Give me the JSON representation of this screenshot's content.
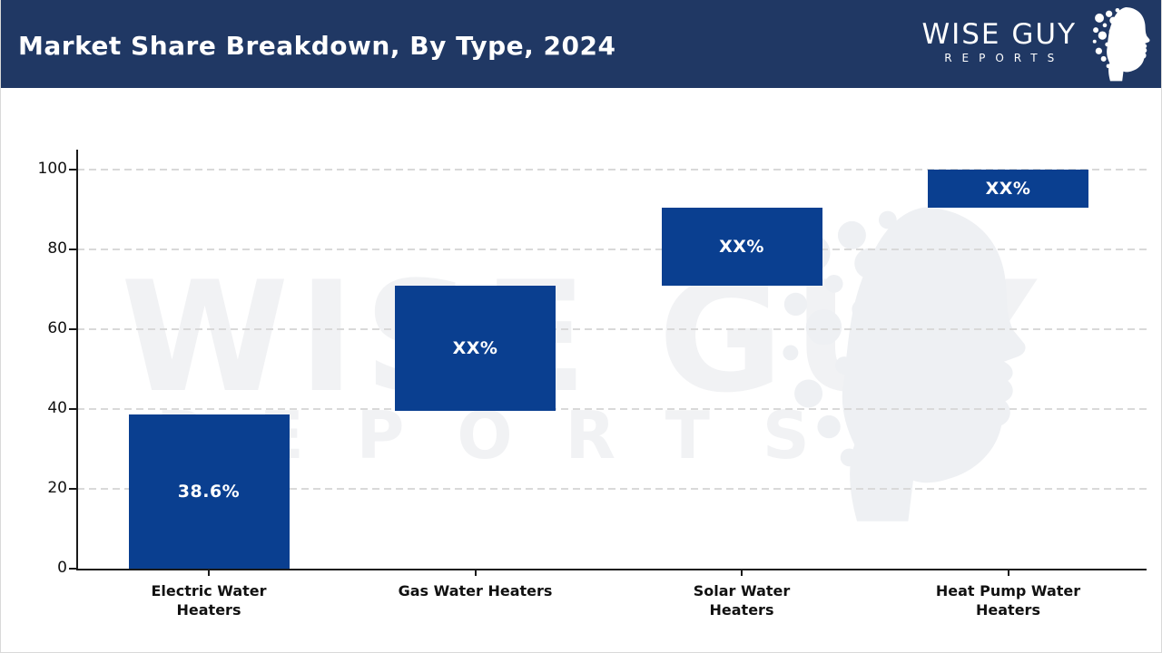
{
  "header": {
    "title": "Market Share Breakdown, By Type, 2024",
    "logo": {
      "line1": "WISE GUY",
      "line2": "REPORTS",
      "face_icon": "dotted-head-profile-icon"
    }
  },
  "watermark": {
    "line1": "WISE GUY",
    "line2": "REPORTS",
    "face_icon": "dotted-head-profile-icon"
  },
  "colors": {
    "header_bg": "#203864",
    "bar": "#0a3f90",
    "value_label": "#ffffff",
    "grid": "#d9d9d9",
    "axis": "#1a1a1a",
    "watermark": "#f1f2f4"
  },
  "chart_data": {
    "type": "bar",
    "subtype": "waterfall",
    "title": "Market Share Breakdown, By Type, 2024",
    "xlabel": "",
    "ylabel": "",
    "legend": "none",
    "grid": "horizontal-dashed",
    "ylim": [
      0,
      105
    ],
    "yticks": [
      0,
      20,
      40,
      60,
      80,
      100
    ],
    "categories": [
      "Electric Water Heaters",
      "Gas Water Heaters",
      "Solar Water Heaters",
      "Heat Pump Water Heaters"
    ],
    "segments": [
      {
        "category": "Electric Water Heaters",
        "label_lines": [
          "Electric Water",
          "Heaters"
        ],
        "start": 0,
        "end": 38.6,
        "value_label": "38.6%"
      },
      {
        "category": "Gas Water Heaters",
        "label_lines": [
          "Gas Water Heaters"
        ],
        "start": 39.5,
        "end": 71,
        "value_label": "XX%"
      },
      {
        "category": "Solar Water Heaters",
        "label_lines": [
          "Solar Water",
          "Heaters"
        ],
        "start": 71,
        "end": 90.5,
        "value_label": "XX%"
      },
      {
        "category": "Heat Pump Water Heaters",
        "label_lines": [
          "Heat Pump Water",
          "Heaters"
        ],
        "start": 90.5,
        "end": 100,
        "value_label": "XX%"
      }
    ],
    "bar_color": "#0a3f90",
    "value_label_color": "#ffffff"
  }
}
